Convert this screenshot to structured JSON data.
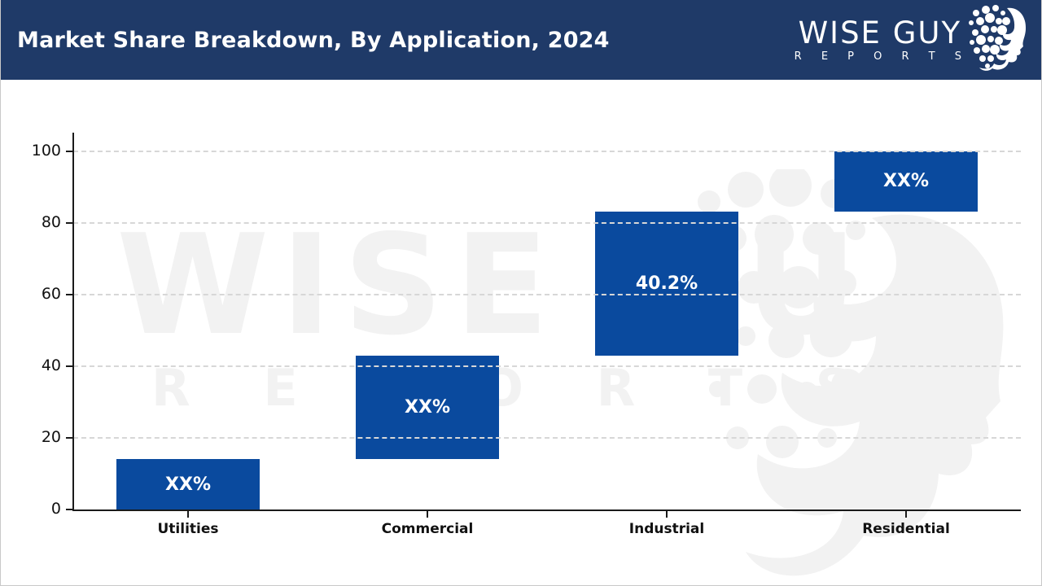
{
  "header": {
    "title": "Market Share Breakdown, By Application, 2024",
    "logo": {
      "line1": "WISE GUY",
      "line2": "R E P O R T S"
    }
  },
  "watermark": {
    "line1": "WISE GU",
    "line2": "R E P O R T S"
  },
  "colors": {
    "header_bg": "#1f3a68",
    "bar_fill": "#0a4a9e",
    "grid": "#d7d7d7",
    "axis": "#1a1a1a",
    "bar_label_text": "#ffffff",
    "watermark": "#f2f2f2"
  },
  "chart_data": {
    "type": "bar",
    "subtype": "floating-waterfall",
    "title": "Market Share Breakdown, By Application, 2024",
    "categories": [
      "Utilities",
      "Commercial",
      "Industrial",
      "Residential"
    ],
    "bars": [
      {
        "category": "Utilities",
        "start": 0,
        "end": 14,
        "value": 14,
        "label": "XX%"
      },
      {
        "category": "Commercial",
        "start": 14,
        "end": 43,
        "value": 29,
        "label": "XX%"
      },
      {
        "category": "Industrial",
        "start": 43,
        "end": 83.2,
        "value": 40.2,
        "label": "40.2%"
      },
      {
        "category": "Residential",
        "start": 83.2,
        "end": 100,
        "value": 16.8,
        "label": "XX%"
      }
    ],
    "xlabel": "",
    "ylabel": "",
    "ylim": [
      0,
      105
    ],
    "yticks": [
      0,
      20,
      40,
      60,
      80,
      100
    ],
    "grid": "horizontal-dashed",
    "legend": "none",
    "unit": "percent"
  }
}
